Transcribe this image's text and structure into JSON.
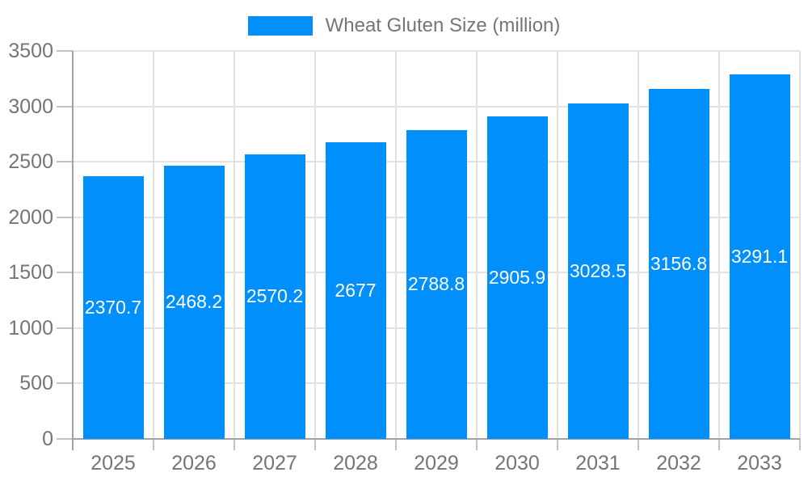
{
  "chart_data": {
    "type": "bar",
    "title": "Wheat Gluten Size (million)",
    "legend_position": "top",
    "categories": [
      "2025",
      "2026",
      "2027",
      "2028",
      "2029",
      "2030",
      "2031",
      "2032",
      "2033"
    ],
    "series": [
      {
        "name": "Wheat Gluten Size (million)",
        "values": [
          2370.7,
          2468.2,
          2570.2,
          2677,
          2788.8,
          2905.9,
          3028.5,
          3156.8,
          3291.1
        ],
        "labels": [
          "2370.7",
          "2468.2",
          "2570.2",
          "2677",
          "2788.8",
          "2905.9",
          "3028.5",
          "3156.8",
          "3291.1"
        ]
      }
    ],
    "xlabel": "",
    "ylabel": "",
    "ylim": [
      0,
      3500
    ],
    "y_ticks": [
      0,
      500,
      1000,
      1500,
      2000,
      2500,
      3000,
      3500
    ],
    "grid": "horizontal-and-vertical",
    "value_labels": "inside-bar-centered-white",
    "colors": {
      "bar": "#008FFB",
      "axis_text": "#757575",
      "legend_text": "#757575",
      "gridline": "#e2e2e2",
      "axis_line": "#a2a2a2",
      "value_label": "#ffffff",
      "background": "#ffffff"
    }
  }
}
